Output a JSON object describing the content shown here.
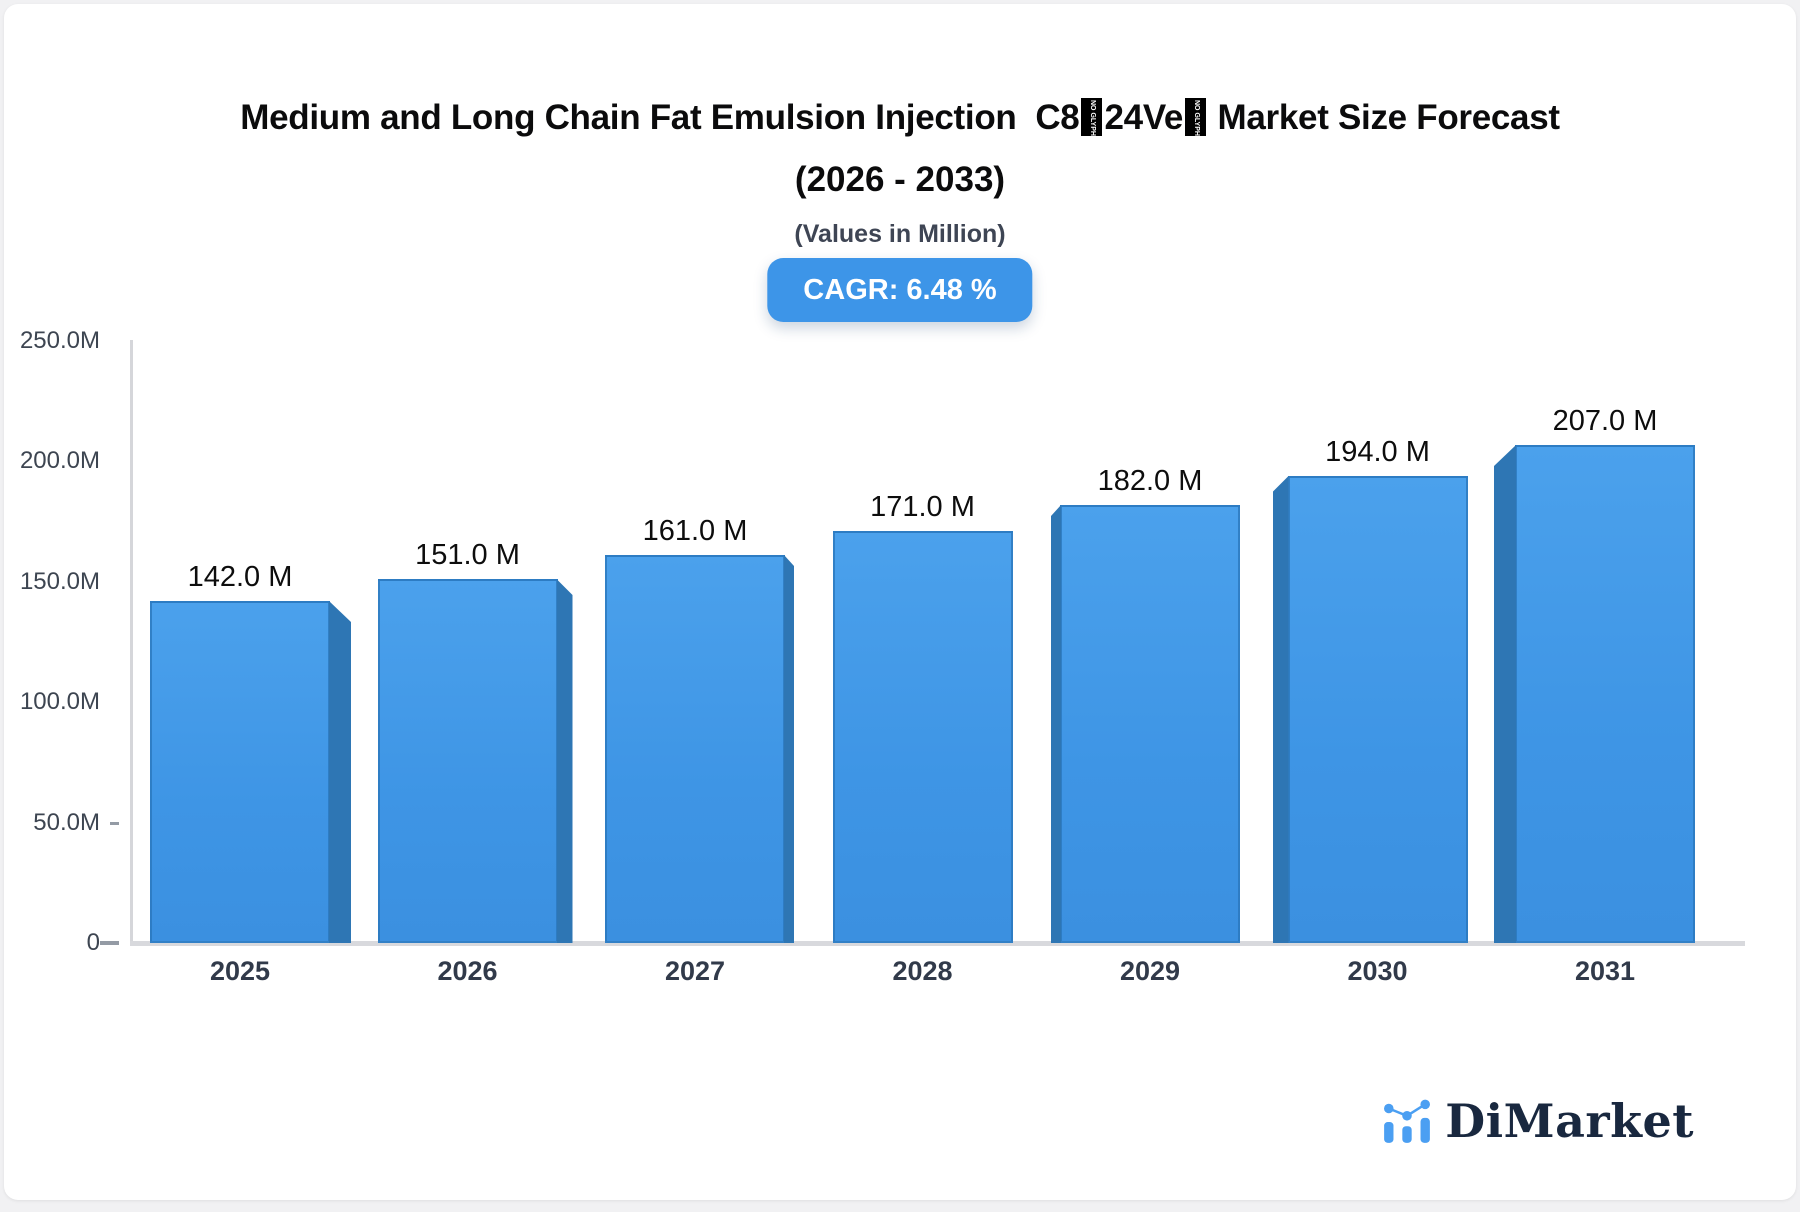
{
  "header": {
    "title_prefix": "Medium and Long Chain Fat Emulsion Injection  C8",
    "title_mid": "24Ve",
    "title_suffix": " Market Size Forecast",
    "title_line2": "(2026 - 2033)",
    "subtitle": "(Values in Million)",
    "missing_glyph_label": "NO GLYPH",
    "cagr_badge": "CAGR: 6.48 %"
  },
  "chart_data": {
    "type": "bar",
    "title": "Medium and Long Chain Fat Emulsion Injection C8[NO GLYPH]24Ve[NO GLYPH] Market Size Forecast (2026 - 2033)",
    "subtitle": "(Values in Million)",
    "cagr_percent": 6.48,
    "categories": [
      "2025",
      "2026",
      "2027",
      "2028",
      "2029",
      "2030",
      "2031"
    ],
    "values": [
      142.0,
      151.0,
      161.0,
      171.0,
      182.0,
      194.0,
      207.0
    ],
    "value_labels": [
      "142.0 M",
      "151.0 M",
      "161.0 M",
      "171.0 M",
      "182.0 M",
      "194.0 M",
      "207.0 M"
    ],
    "unit": "Million",
    "ylabel": "",
    "xlabel": "",
    "ylim": [
      0,
      250
    ],
    "y_ticks": [
      "250.0M",
      "200.0M",
      "150.0M",
      "100.0M",
      "50.0M",
      "0"
    ],
    "y_tick_values": [
      250,
      200,
      150,
      100,
      50,
      0
    ],
    "grid": false,
    "legend_position": "none",
    "bar_color": "#3f97e6",
    "bar_side_color": "#2e76b4",
    "badge_color": "#3d95e8"
  },
  "footer": {
    "logo_text": "DiMarket"
  }
}
